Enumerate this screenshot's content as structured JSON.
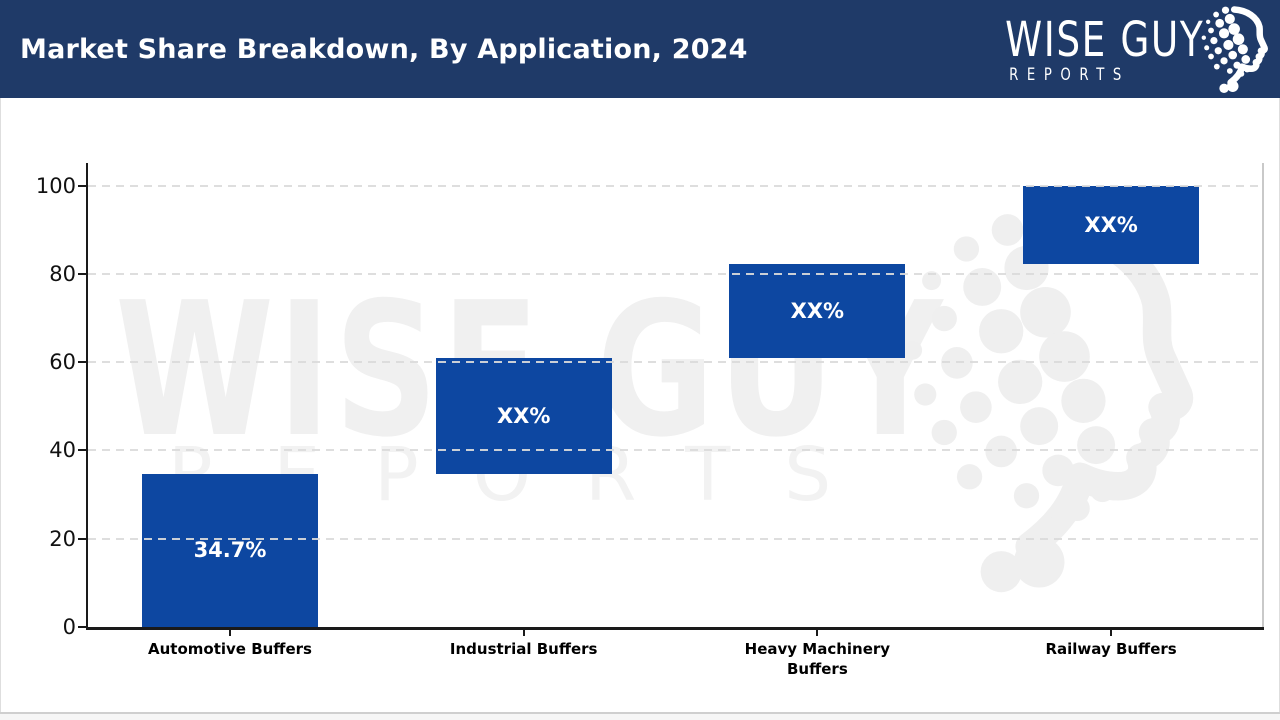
{
  "header": {
    "title": "Market Share Breakdown, By Application, 2024",
    "logo": {
      "line1": "WISE GUY",
      "line2": "REPORTS",
      "icon": "dotted-head-profile-icon"
    }
  },
  "watermark": {
    "line1": "WISE GUY",
    "line2": "REPORTS",
    "icon": "dotted-head-profile-icon"
  },
  "chart_data": {
    "type": "bar",
    "subtype": "waterfall",
    "title": "Market Share Breakdown, By Application, 2024",
    "categories": [
      "Automotive Buffers",
      "Industrial Buffers",
      "Heavy Machinery Buffers",
      "Railway Buffers"
    ],
    "segments": [
      {
        "category": "Automotive Buffers",
        "start": 0,
        "end": 34.7,
        "label": "34.7%"
      },
      {
        "category": "Industrial Buffers",
        "start": 34.7,
        "end": 61,
        "label": "XX%"
      },
      {
        "category": "Heavy Machinery Buffers",
        "start": 61,
        "end": 82.3,
        "label": "XX%"
      },
      {
        "category": "Railway Buffers",
        "start": 82.3,
        "end": 100,
        "label": "XX%"
      }
    ],
    "increments": [
      34.7,
      26.3,
      21.3,
      17.7
    ],
    "xlabel": "",
    "ylabel": "",
    "ylim": [
      0,
      100
    ],
    "yticks": [
      0,
      20,
      40,
      60,
      80,
      100
    ],
    "grid": "horizontal-dashed",
    "legend": "none",
    "bar_color": "#0d47a1",
    "bar_label_color": "#ffffff"
  },
  "colors": {
    "header_bg": "#1f3a68",
    "title_text": "#ffffff",
    "bar": "#0d47a1",
    "gridline": "#dbdbdb",
    "axis": "#1a1a1a",
    "watermark": "#f0f0f0"
  }
}
